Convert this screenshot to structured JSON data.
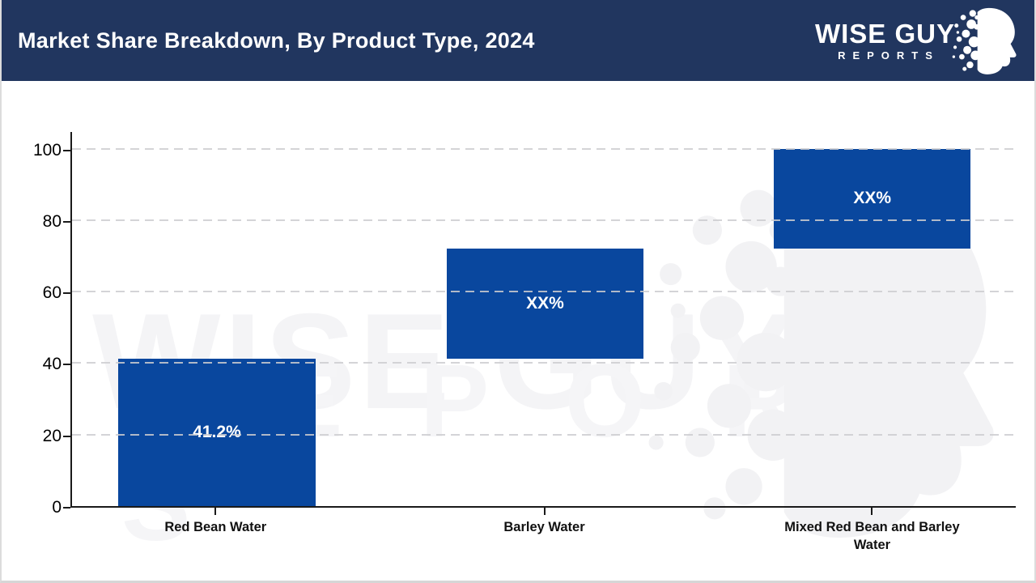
{
  "header": {
    "title": "Market Share Breakdown, By Product Type, 2024",
    "logo": {
      "line1": "WISE GUY",
      "line2": "REPORTS"
    }
  },
  "watermark": {
    "line1": "WISE GUY",
    "line2": "R E P O R T S"
  },
  "colors": {
    "header_bg": "#21365F",
    "header_text": "#FFFFFF",
    "bar": "#09479E",
    "bar_label_text": "#FFFFFF",
    "grid": "#CDCDD0",
    "axis": "#1A1A1A",
    "watermark": "#F4F4F6"
  },
  "chart_data": {
    "type": "bar",
    "subtype": "waterfall-stacked",
    "title": "Market Share Breakdown, By Product Type, 2024",
    "categories": [
      "Red Bean Water",
      "Barley Water",
      "Mixed Red Bean and Barley Water"
    ],
    "segments": [
      {
        "category": "Red Bean Water",
        "start": 0,
        "end": 41.2,
        "label": "41.2%"
      },
      {
        "category": "Barley Water",
        "start": 41.2,
        "end": 72,
        "label": "XX%"
      },
      {
        "category": "Mixed Red Bean and Barley Water",
        "start": 72,
        "end": 100,
        "label": "XX%"
      }
    ],
    "y_ticks": [
      0,
      20,
      40,
      60,
      80,
      100
    ],
    "ylim": [
      0,
      100
    ],
    "xlabel": "",
    "ylabel": "",
    "grid": "horizontal-dashed",
    "legend": "none",
    "layout": {
      "bar_centers_frac": [
        0.1535,
        0.5013,
        0.848
      ],
      "bar_width_frac": 0.2085
    }
  }
}
